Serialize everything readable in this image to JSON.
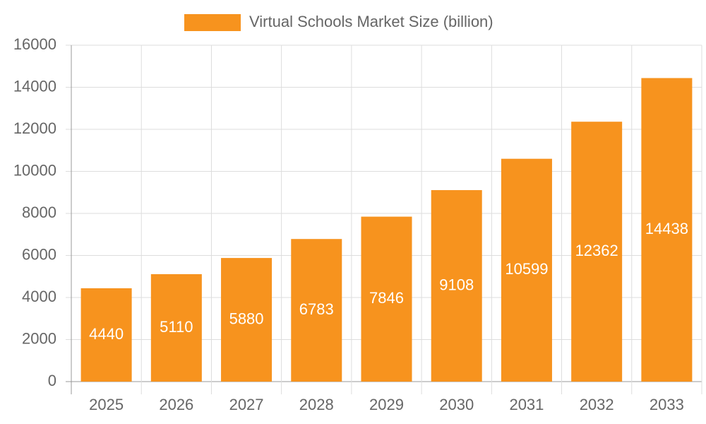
{
  "chart_data": {
    "type": "bar",
    "categories": [
      "2025",
      "2026",
      "2027",
      "2028",
      "2029",
      "2030",
      "2031",
      "2032",
      "2033"
    ],
    "series": [
      {
        "name": "Virtual Schools Market Size (billion)",
        "color": "#f7931e",
        "values": [
          4440,
          5110,
          5880,
          6783,
          7846,
          9108,
          10599,
          12362,
          14438
        ]
      }
    ],
    "ylim": [
      0,
      16000
    ],
    "yticks": [
      0,
      2000,
      4000,
      6000,
      8000,
      10000,
      12000,
      14000,
      16000
    ],
    "grid": true,
    "legend": "top"
  }
}
